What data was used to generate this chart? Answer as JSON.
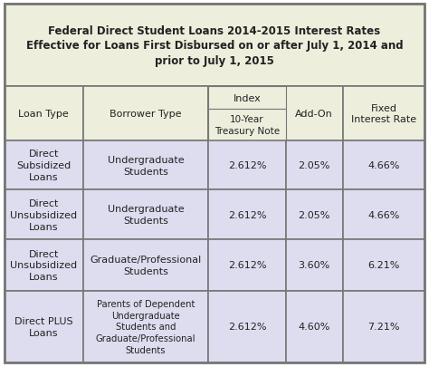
{
  "title_line1": "Federal Direct Student Loans 2014-2015 Interest Rates",
  "title_line2": "Effective for Loans First Disbursed on or after July 1, 2014 and",
  "title_line3": "prior to July 1, 2015",
  "title_bg": "#eeeedd",
  "header_bg": "#eeeedd",
  "data_bg": "#ddddef",
  "border_color": "#777777",
  "text_color": "#222222",
  "col_headers": [
    "Loan Type",
    "Borrower Type",
    "10-Year\nTreasury Note",
    "Add-On",
    "Fixed\nInterest Rate"
  ],
  "index_label": "Index",
  "rows": [
    [
      "Direct\nSubsidized\nLoans",
      "Undergraduate\nStudents",
      "2.612%",
      "2.05%",
      "4.66%"
    ],
    [
      "Direct\nUnsubsidized\nLoans",
      "Undergraduate\nStudents",
      "2.612%",
      "2.05%",
      "4.66%"
    ],
    [
      "Direct\nUnsubsidized\nLoans",
      "Graduate/Professional\nStudents",
      "2.612%",
      "3.60%",
      "6.21%"
    ],
    [
      "Direct PLUS\nLoans",
      "Parents of Dependent\nUndergraduate\nStudents and\nGraduate/Professional\nStudents",
      "2.612%",
      "4.60%",
      "7.21%"
    ]
  ],
  "figsize": [
    4.74,
    4.06
  ],
  "dpi": 100,
  "title_font_size": 8.5,
  "header_font_size": 8.0,
  "data_font_size": 8.0,
  "small_font_size": 7.2
}
